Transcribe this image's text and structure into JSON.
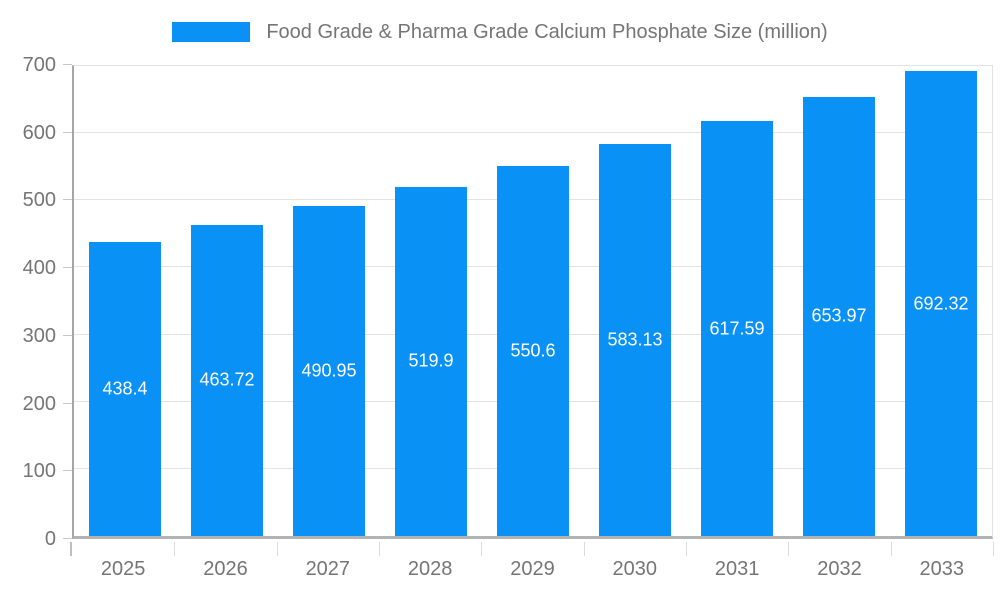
{
  "legend": {
    "swatch_color": "#0a91f5"
  },
  "chart_data": {
    "type": "bar",
    "title": "Food Grade & Pharma Grade Calcium Phosphate Size (million)",
    "categories": [
      "2025",
      "2026",
      "2027",
      "2028",
      "2029",
      "2030",
      "2031",
      "2032",
      "2033"
    ],
    "values": [
      438.4,
      463.72,
      490.95,
      519.9,
      550.6,
      583.13,
      617.59,
      653.97,
      692.32
    ],
    "value_labels": [
      "438.4",
      "463.72",
      "490.95",
      "519.9",
      "550.6",
      "583.13",
      "617.59",
      "653.97",
      "692.32"
    ],
    "xlabel": "",
    "ylabel": "",
    "ylim": [
      0,
      700
    ],
    "yticks": [
      0,
      100,
      200,
      300,
      400,
      500,
      600,
      700
    ],
    "grid": true,
    "legend_position": "top-center",
    "colors": {
      "bar": "#0a91f5",
      "bar_label_text": "#ffffff",
      "grid_line": "#e3e3e3",
      "y_axis_line": "#a6a6a6",
      "x_axis_line": "#b3b3b3",
      "tick_mark": "#c9c9c9",
      "label_text": "#757575",
      "background": "#ffffff"
    }
  }
}
